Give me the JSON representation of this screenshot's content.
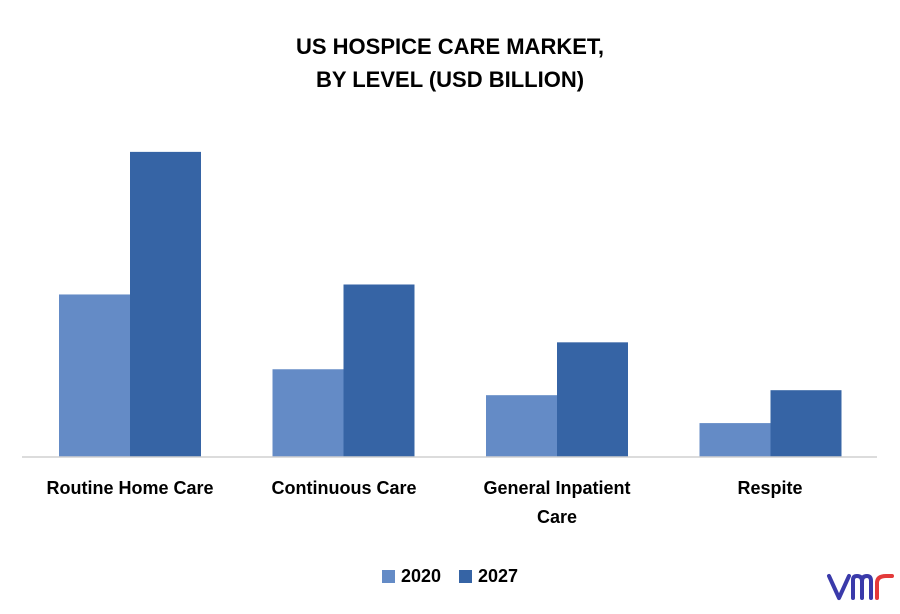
{
  "chart_data": {
    "type": "bar",
    "title": [
      "US HOSPICE CARE MARKET,",
      "BY LEVEL (USD BILLION)"
    ],
    "xlabel": "",
    "ylabel": "",
    "categories": [
      "Routine Home Care",
      "Continuous Care",
      "General Inpatient Care",
      "Respite"
    ],
    "series": [
      {
        "name": "2020",
        "color": "#648bc6",
        "values": [
          16.3,
          8.8,
          6.2,
          3.4
        ]
      },
      {
        "name": "2027",
        "color": "#3664a5",
        "values": [
          30.6,
          17.3,
          11.5,
          6.7
        ]
      }
    ],
    "ylim": [
      0,
      35
    ],
    "grid": false,
    "legend": "bottom-center"
  },
  "brand": {
    "logo_icon": "vmr-logo-icon",
    "color": "#3a3aaa"
  }
}
